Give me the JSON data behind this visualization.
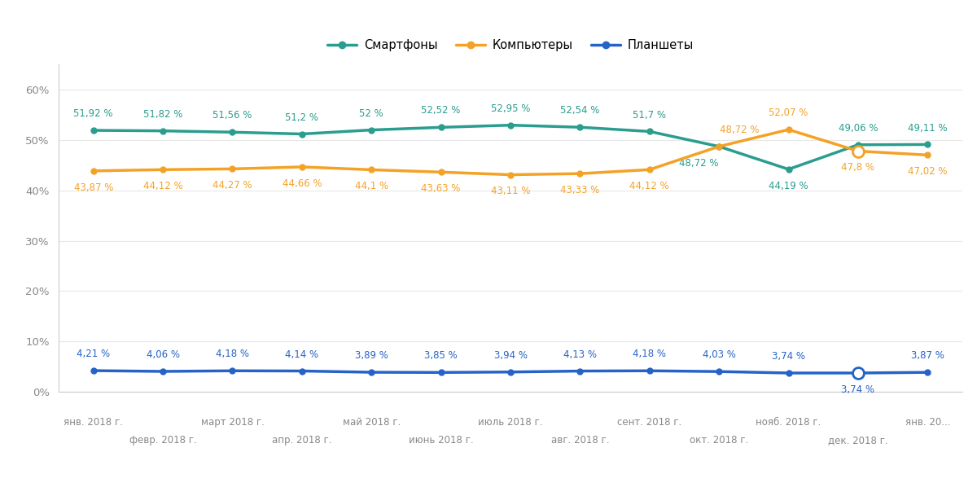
{
  "smartphones": [
    51.92,
    51.82,
    51.56,
    51.2,
    52.0,
    52.52,
    52.95,
    52.54,
    51.7,
    48.72,
    44.19,
    49.06,
    49.11
  ],
  "computers": [
    43.87,
    44.12,
    44.27,
    44.66,
    44.1,
    43.63,
    43.11,
    43.33,
    44.12,
    48.72,
    52.07,
    47.8,
    47.02
  ],
  "tablets": [
    4.21,
    4.06,
    4.18,
    4.14,
    3.89,
    3.85,
    3.94,
    4.13,
    4.18,
    4.03,
    3.74,
    3.74,
    3.87
  ],
  "smartphones_labels": [
    "51,92 %",
    "51,82 %",
    "51,56 %",
    "51,2 %",
    "52 %",
    "52,52 %",
    "52,95 %",
    "52,54 %",
    "51,7 %",
    "48,72 %",
    "44,19 %",
    "49,06 %",
    "49,11 %"
  ],
  "computers_labels": [
    "43,87 %",
    "44,12 %",
    "44,27 %",
    "44,66 %",
    "44,1 %",
    "43,63 %",
    "43,11 %",
    "43,33 %",
    "44,12 %",
    "48,72 %",
    "52,07 %",
    "47,8 %",
    "47,02 %"
  ],
  "tablets_labels": [
    "4,21 %",
    "4,06 %",
    "4,18 %",
    "4,14 %",
    "3,89 %",
    "3,85 %",
    "3,94 %",
    "4,13 %",
    "4,18 %",
    "4,03 %",
    "3,74 %",
    "3,74 %",
    "3,87 %"
  ],
  "color_smartphones": "#2a9d8f",
  "color_computers": "#f4a226",
  "color_tablets": "#2563c8",
  "legend_labels": [
    "Смартфоны",
    "Компьютеры",
    "Планшеты"
  ],
  "yticks": [
    0,
    10,
    20,
    30,
    40,
    50,
    60
  ],
  "ylim": [
    0,
    65
  ],
  "bg_color": "#ffffff",
  "grid_color": "#e8e8e8",
  "spine_color": "#cccccc",
  "label_color": "#888888",
  "x_row1": [
    "янв. 2018 г.",
    "",
    "март 2018 г.",
    "",
    "май 2018 г.",
    "",
    "июль 2018 г.",
    "",
    "сент. 2018 г.",
    "",
    "нояб. 2018 г.",
    "",
    "янв. 20..."
  ],
  "x_row2": [
    "",
    "февр. 2018 г.",
    "",
    "апр. 2018 г.",
    "",
    "июнь 2018 г.",
    "",
    "авг. 2018 г.",
    "",
    "окт. 2018 г.",
    "",
    "дек. 2018 г.",
    ""
  ],
  "smart_label_va": [
    1,
    1,
    1,
    1,
    1,
    1,
    1,
    1,
    1,
    -1,
    -1,
    1,
    1
  ],
  "comp_label_va": [
    -1,
    -1,
    -1,
    -1,
    -1,
    -1,
    -1,
    -1,
    -1,
    1,
    1,
    -1,
    -1
  ],
  "tab_label_va": [
    1,
    1,
    1,
    1,
    1,
    1,
    1,
    1,
    1,
    1,
    1,
    -1,
    1
  ],
  "smart_label_dx": [
    0,
    0,
    0,
    0,
    0,
    0,
    0,
    0,
    0,
    -18,
    0,
    0,
    0
  ],
  "comp_label_dx": [
    0,
    0,
    0,
    0,
    0,
    0,
    0,
    0,
    0,
    18,
    0,
    0,
    0
  ],
  "tab_label_dx": [
    0,
    0,
    0,
    0,
    0,
    0,
    0,
    0,
    0,
    0,
    0,
    0,
    0
  ]
}
